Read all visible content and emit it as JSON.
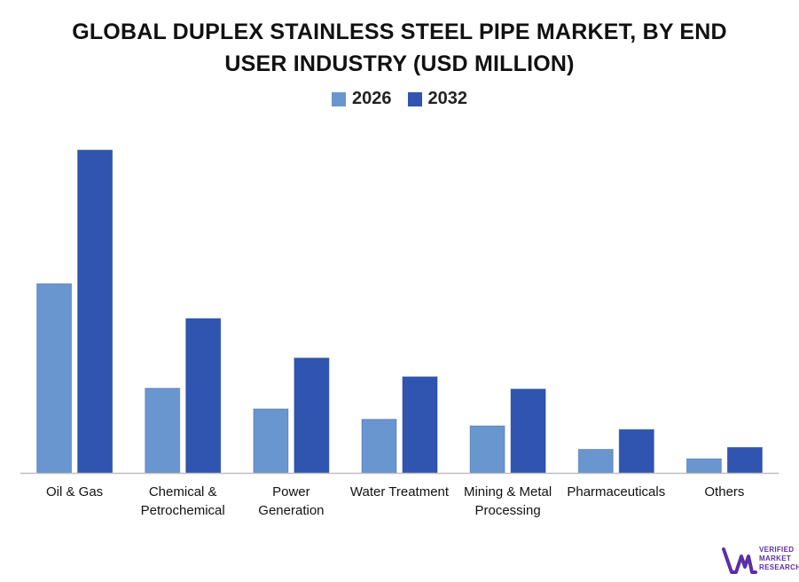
{
  "chart_data": {
    "type": "bar",
    "title_lines": [
      "GLOBAL DUPLEX STAINLESS STEEL PIPE MARKET, BY END",
      "USER INDUSTRY (USD MILLION)"
    ],
    "categories": [
      [
        "Oil & Gas"
      ],
      [
        "Chemical &",
        "Petrochemical"
      ],
      [
        "Power",
        "Generation"
      ],
      [
        "Water Treatment"
      ],
      [
        "Mining & Metal",
        "Processing"
      ],
      [
        "Pharmaceuticals"
      ],
      [
        "Others"
      ]
    ],
    "series": [
      {
        "name": "2026",
        "color": "#6a96cf",
        "values": [
          201,
          90,
          68,
          57,
          50,
          25,
          15
        ]
      },
      {
        "name": "2032",
        "color": "#2f55b0",
        "values": [
          343,
          164,
          122,
          102,
          89,
          46,
          27
        ]
      }
    ],
    "ylim": [
      0,
      380
    ],
    "grid": false,
    "legend_position": "top-center",
    "axis_color": "#bfbfbf"
  },
  "branding": {
    "logo_lines": [
      "VERIFIED",
      "MARKET",
      "RESEARCH"
    ],
    "logo_color": "#5b2fa8"
  }
}
